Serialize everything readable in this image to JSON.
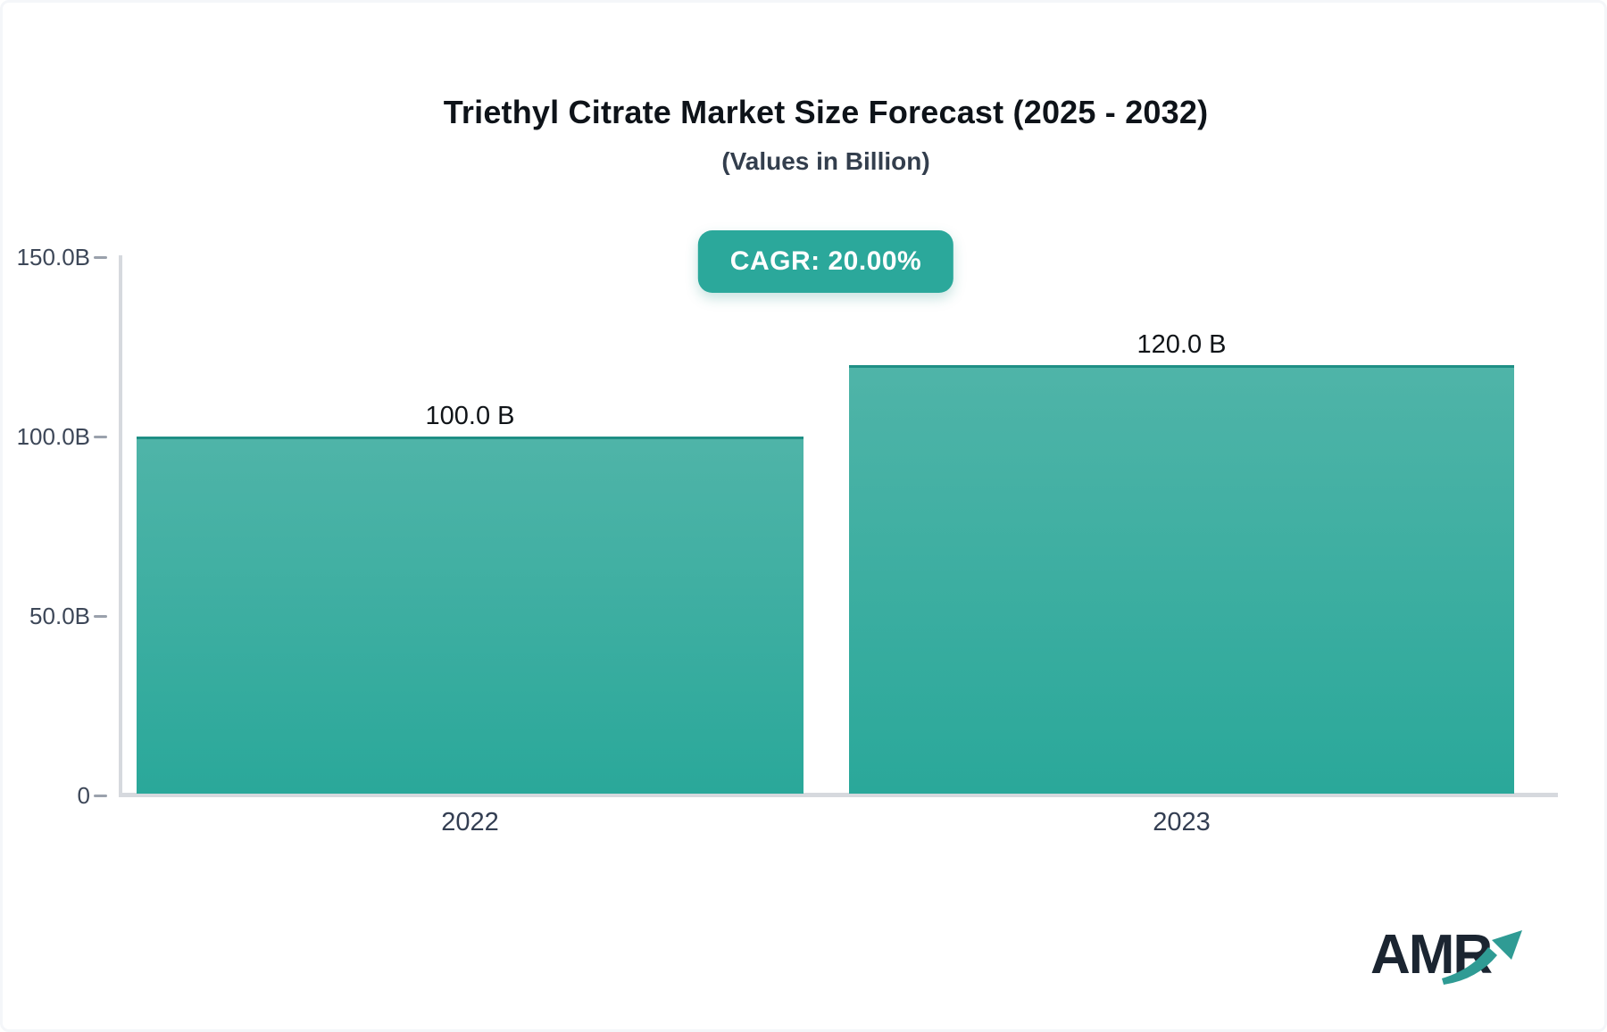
{
  "header": {
    "title": "Triethyl Citrate Market Size Forecast (2025 - 2032)",
    "subtitle": "(Values in Billion)"
  },
  "cagr_badge": {
    "label": "CAGR: 20.00%",
    "background": "#2BA89B",
    "text_color": "#FFFFFF"
  },
  "chart_data": {
    "type": "bar",
    "title": "Triethyl Citrate Market Size Forecast (2025 - 2032)",
    "subtitle": "(Values in Billion)",
    "cagr_label": "CAGR: 20.00%",
    "cagr_percent": 20.0,
    "categories": [
      "2022",
      "2023"
    ],
    "values": [
      100.0,
      120.0
    ],
    "value_labels": [
      "100.0 B",
      "120.0 B"
    ],
    "xlabel": "",
    "ylabel": "",
    "ylim": [
      0,
      150
    ],
    "yticks": [
      0,
      50,
      100,
      150
    ],
    "ytick_labels": [
      "0",
      "50.0B",
      "100.0B",
      "150.0B"
    ],
    "grid": false,
    "legend": false,
    "bar_colors": {
      "top": "#4FB4A8",
      "bottom": "#2AA89A",
      "border_top": "#1F8F85"
    },
    "axis_color": "#D6D9DE"
  },
  "logo": {
    "text": "AMR",
    "text_color": "#1B2531",
    "arrow_color": "#2F9B94"
  }
}
